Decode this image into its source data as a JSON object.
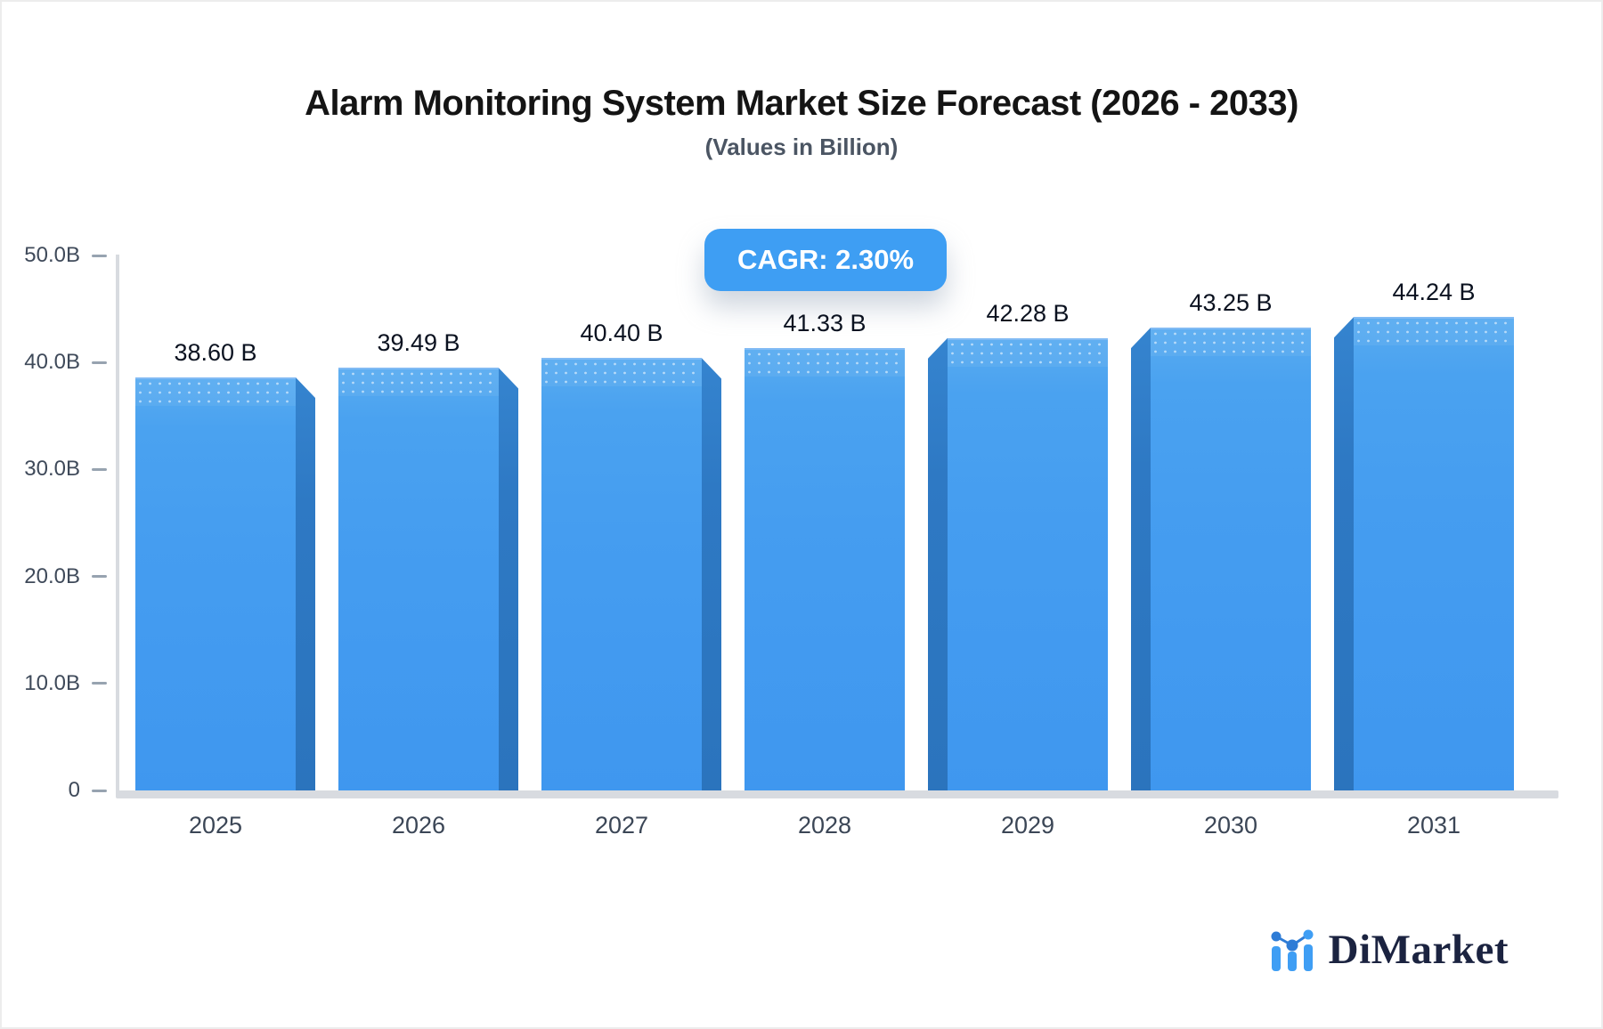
{
  "header": {
    "title": "Alarm Monitoring System Market Size Forecast (2026 - 2033)",
    "subtitle": "(Values in Billion)"
  },
  "badge": {
    "label": "CAGR: 2.30%",
    "background": "#3e9ef3",
    "text_color": "#ffffff"
  },
  "chart_data": {
    "type": "bar",
    "title": "Alarm Monitoring System Market Size Forecast (2026 - 2033)",
    "subtitle": "(Values in Billion)",
    "categories": [
      "2025",
      "2026",
      "2027",
      "2028",
      "2029",
      "2030",
      "2031"
    ],
    "values": [
      38.6,
      39.49,
      40.4,
      41.33,
      42.28,
      43.25,
      44.24
    ],
    "value_labels": [
      "38.60 B",
      "39.49 B",
      "40.40 B",
      "41.33 B",
      "42.28 B",
      "43.25 B",
      "44.24 B"
    ],
    "xlabel": "",
    "ylabel": "",
    "ylim": [
      0,
      50
    ],
    "y_tick_values": [
      50,
      40,
      30,
      20,
      10,
      0
    ],
    "y_tick_labels": [
      "50.0B",
      "40.0B",
      "30.0B",
      "20.0B",
      "10.0B",
      "0"
    ],
    "grid": false,
    "legend": false,
    "bar_face_top_color": "#58abf1",
    "bar_face_bottom_color": "#3f97ef",
    "bar_side_color": "#2e79c4",
    "axis_color": "#d8dbe0",
    "tick_color": "#97a3b0",
    "label_color": "#3b4656"
  },
  "footer": {
    "logo_text": "DiMarket",
    "logo_icon": "bar-chart-logo-icon",
    "logo_bar_color": "#3f9ef4",
    "logo_dot_color": "#2e7cd6",
    "logo_text_color": "#1b2340"
  }
}
